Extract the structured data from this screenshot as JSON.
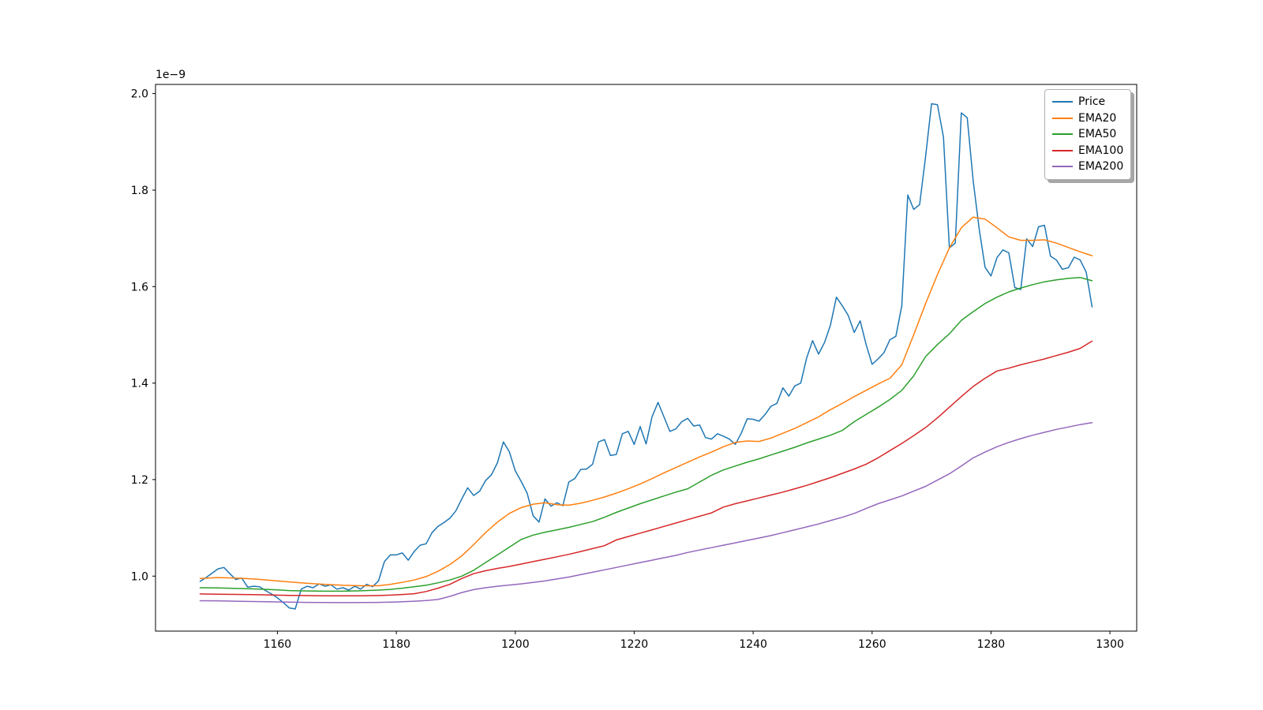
{
  "figure": {
    "background": "#ffffff"
  },
  "chart_data": {
    "type": "line",
    "title": "",
    "xlabel": "",
    "ylabel": "",
    "y_offset_label": "1e−9",
    "xlim": [
      1139.5,
      1304.5
    ],
    "ylim": [
      0.886,
      2.019
    ],
    "x_ticks": [
      1160,
      1180,
      1200,
      1220,
      1240,
      1260,
      1280,
      1300
    ],
    "y_ticks": [
      "1.0",
      "1.2",
      "1.4",
      "1.6",
      "1.8",
      "2.0"
    ],
    "grid": false,
    "legend": {
      "position": "upper right",
      "shadow": true
    },
    "series": [
      {
        "name": "price",
        "label": "Price",
        "color": "#1f77b4",
        "x": [
          1147,
          1148,
          1149,
          1150,
          1151,
          1152,
          1153,
          1154,
          1155,
          1156,
          1157,
          1158,
          1159,
          1160,
          1161,
          1162,
          1163,
          1164,
          1165,
          1166,
          1167,
          1168,
          1169,
          1170,
          1171,
          1172,
          1173,
          1174,
          1175,
          1176,
          1177,
          1178,
          1179,
          1180,
          1181,
          1182,
          1183,
          1184,
          1185,
          1186,
          1187,
          1188,
          1189,
          1190,
          1191,
          1192,
          1193,
          1194,
          1195,
          1196,
          1197,
          1198,
          1199,
          1200,
          1201,
          1202,
          1203,
          1204,
          1205,
          1206,
          1207,
          1208,
          1209,
          1210,
          1211,
          1212,
          1213,
          1214,
          1215,
          1216,
          1217,
          1218,
          1219,
          1220,
          1221,
          1222,
          1223,
          1224,
          1225,
          1226,
          1227,
          1228,
          1229,
          1230,
          1231,
          1232,
          1233,
          1234,
          1235,
          1236,
          1237,
          1238,
          1239,
          1240,
          1241,
          1242,
          1243,
          1244,
          1245,
          1246,
          1247,
          1248,
          1249,
          1250,
          1251,
          1252,
          1253,
          1254,
          1255,
          1256,
          1257,
          1258,
          1259,
          1260,
          1261,
          1262,
          1263,
          1264,
          1265,
          1266,
          1267,
          1268,
          1269,
          1270,
          1271,
          1272,
          1273,
          1274,
          1275,
          1276,
          1277,
          1278,
          1279,
          1280,
          1281,
          1282,
          1283,
          1284,
          1285,
          1286,
          1287,
          1288,
          1289,
          1290,
          1291,
          1292,
          1293,
          1294,
          1295,
          1296,
          1297
        ],
        "y": [
          0.989,
          0.997,
          1.006,
          1.015,
          1.018,
          1.005,
          0.993,
          0.996,
          0.977,
          0.979,
          0.978,
          0.97,
          0.963,
          0.955,
          0.945,
          0.934,
          0.932,
          0.973,
          0.979,
          0.976,
          0.984,
          0.979,
          0.982,
          0.973,
          0.976,
          0.971,
          0.979,
          0.973,
          0.983,
          0.978,
          0.99,
          1.03,
          1.044,
          1.044,
          1.048,
          1.033,
          1.051,
          1.064,
          1.067,
          1.09,
          1.103,
          1.111,
          1.12,
          1.135,
          1.16,
          1.183,
          1.167,
          1.176,
          1.198,
          1.21,
          1.235,
          1.278,
          1.258,
          1.218,
          1.196,
          1.172,
          1.125,
          1.112,
          1.16,
          1.145,
          1.152,
          1.146,
          1.195,
          1.202,
          1.221,
          1.222,
          1.232,
          1.278,
          1.283,
          1.25,
          1.252,
          1.295,
          1.3,
          1.273,
          1.31,
          1.274,
          1.33,
          1.36,
          1.33,
          1.3,
          1.305,
          1.32,
          1.327,
          1.311,
          1.313,
          1.287,
          1.284,
          1.295,
          1.29,
          1.284,
          1.273,
          1.296,
          1.326,
          1.325,
          1.321,
          1.335,
          1.352,
          1.358,
          1.39,
          1.373,
          1.394,
          1.4,
          1.452,
          1.488,
          1.46,
          1.484,
          1.52,
          1.578,
          1.56,
          1.54,
          1.505,
          1.529,
          1.48,
          1.439,
          1.45,
          1.463,
          1.49,
          1.497,
          1.56,
          1.79,
          1.76,
          1.77,
          1.87,
          1.979,
          1.977,
          1.91,
          1.68,
          1.69,
          1.96,
          1.95,
          1.82,
          1.72,
          1.64,
          1.622,
          1.66,
          1.676,
          1.67,
          1.598,
          1.594,
          1.699,
          1.683,
          1.724,
          1.727,
          1.663,
          1.655,
          1.636,
          1.639,
          1.661,
          1.655,
          1.63,
          1.558
        ]
      },
      {
        "name": "ema20",
        "label": "EMA20",
        "color": "#ff7f0e",
        "x": [
          1147,
          1150,
          1153,
          1156,
          1159,
          1162,
          1165,
          1168,
          1171,
          1174,
          1177,
          1179,
          1181,
          1183,
          1185,
          1187,
          1189,
          1191,
          1193,
          1195,
          1197,
          1199,
          1201,
          1203,
          1205,
          1207,
          1209,
          1211,
          1213,
          1215,
          1217,
          1219,
          1221,
          1223,
          1225,
          1227,
          1229,
          1231,
          1233,
          1235,
          1237,
          1239,
          1241,
          1243,
          1245,
          1247,
          1249,
          1251,
          1253,
          1255,
          1257,
          1259,
          1261,
          1263,
          1265,
          1267,
          1269,
          1271,
          1273,
          1275,
          1277,
          1279,
          1281,
          1283,
          1285,
          1287,
          1289,
          1291,
          1293,
          1295,
          1297
        ],
        "y": [
          0.995,
          0.997,
          0.996,
          0.994,
          0.991,
          0.988,
          0.985,
          0.983,
          0.981,
          0.98,
          0.98,
          0.983,
          0.987,
          0.992,
          0.999,
          1.01,
          1.024,
          1.042,
          1.065,
          1.09,
          1.112,
          1.13,
          1.142,
          1.149,
          1.152,
          1.148,
          1.147,
          1.151,
          1.157,
          1.164,
          1.172,
          1.181,
          1.191,
          1.202,
          1.214,
          1.225,
          1.236,
          1.247,
          1.257,
          1.268,
          1.277,
          1.28,
          1.279,
          1.286,
          1.296,
          1.306,
          1.318,
          1.33,
          1.345,
          1.358,
          1.372,
          1.385,
          1.398,
          1.41,
          1.438,
          1.5,
          1.565,
          1.625,
          1.68,
          1.722,
          1.744,
          1.74,
          1.722,
          1.703,
          1.696,
          1.696,
          1.697,
          1.69,
          1.681,
          1.672,
          1.664
        ]
      },
      {
        "name": "ema50",
        "label": "EMA50",
        "color": "#2ca02c",
        "x": [
          1147,
          1150,
          1153,
          1156,
          1159,
          1162,
          1165,
          1168,
          1171,
          1174,
          1177,
          1179,
          1181,
          1183,
          1185,
          1187,
          1189,
          1191,
          1193,
          1195,
          1197,
          1199,
          1201,
          1203,
          1205,
          1207,
          1209,
          1211,
          1213,
          1215,
          1217,
          1219,
          1221,
          1223,
          1225,
          1227,
          1229,
          1231,
          1233,
          1235,
          1237,
          1239,
          1241,
          1243,
          1245,
          1247,
          1249,
          1251,
          1253,
          1255,
          1257,
          1259,
          1261,
          1263,
          1265,
          1267,
          1269,
          1271,
          1273,
          1275,
          1277,
          1279,
          1281,
          1283,
          1285,
          1287,
          1289,
          1291,
          1293,
          1295,
          1297
        ],
        "y": [
          0.976,
          0.9755,
          0.9745,
          0.9735,
          0.972,
          0.97,
          0.9692,
          0.9687,
          0.9688,
          0.9695,
          0.971,
          0.9725,
          0.975,
          0.978,
          0.981,
          0.986,
          0.992,
          1.0,
          1.012,
          1.028,
          1.044,
          1.06,
          1.076,
          1.085,
          1.091,
          1.096,
          1.101,
          1.107,
          1.113,
          1.122,
          1.132,
          1.141,
          1.15,
          1.158,
          1.166,
          1.174,
          1.181,
          1.195,
          1.209,
          1.22,
          1.228,
          1.236,
          1.243,
          1.251,
          1.259,
          1.267,
          1.276,
          1.284,
          1.292,
          1.302,
          1.32,
          1.335,
          1.35,
          1.366,
          1.385,
          1.415,
          1.455,
          1.48,
          1.502,
          1.53,
          1.548,
          1.565,
          1.578,
          1.589,
          1.597,
          1.604,
          1.61,
          1.614,
          1.617,
          1.619,
          1.612
        ]
      },
      {
        "name": "ema100",
        "label": "EMA100",
        "color": "#d62728",
        "x": [
          1147,
          1150,
          1153,
          1156,
          1159,
          1162,
          1165,
          1168,
          1171,
          1174,
          1177,
          1179,
          1181,
          1183,
          1185,
          1187,
          1189,
          1191,
          1193,
          1195,
          1197,
          1199,
          1201,
          1203,
          1205,
          1207,
          1209,
          1211,
          1213,
          1215,
          1217,
          1219,
          1221,
          1223,
          1225,
          1227,
          1229,
          1231,
          1233,
          1235,
          1237,
          1239,
          1241,
          1243,
          1245,
          1247,
          1249,
          1251,
          1253,
          1255,
          1257,
          1259,
          1261,
          1263,
          1265,
          1267,
          1269,
          1271,
          1273,
          1275,
          1277,
          1279,
          1281,
          1283,
          1285,
          1287,
          1289,
          1291,
          1293,
          1295,
          1297
        ],
        "y": [
          0.963,
          0.9625,
          0.962,
          0.9615,
          0.9608,
          0.96,
          0.9595,
          0.959,
          0.959,
          0.9592,
          0.9598,
          0.9605,
          0.9618,
          0.9635,
          0.968,
          0.975,
          0.983,
          0.995,
          1.005,
          1.011,
          1.016,
          1.02,
          1.025,
          1.03,
          1.035,
          1.04,
          1.045,
          1.051,
          1.057,
          1.063,
          1.075,
          1.082,
          1.089,
          1.096,
          1.103,
          1.11,
          1.117,
          1.124,
          1.131,
          1.143,
          1.15,
          1.156,
          1.162,
          1.168,
          1.174,
          1.181,
          1.188,
          1.196,
          1.204,
          1.213,
          1.222,
          1.232,
          1.245,
          1.26,
          1.275,
          1.291,
          1.308,
          1.328,
          1.35,
          1.372,
          1.393,
          1.41,
          1.425,
          1.431,
          1.438,
          1.444,
          1.45,
          1.457,
          1.464,
          1.472,
          1.487
        ]
      },
      {
        "name": "ema200",
        "label": "EMA200",
        "color": "#9467bd",
        "x": [
          1147,
          1150,
          1153,
          1156,
          1159,
          1162,
          1165,
          1168,
          1171,
          1174,
          1177,
          1179,
          1181,
          1183,
          1185,
          1187,
          1189,
          1191,
          1193,
          1195,
          1197,
          1199,
          1201,
          1203,
          1205,
          1207,
          1209,
          1211,
          1213,
          1215,
          1217,
          1219,
          1221,
          1223,
          1225,
          1227,
          1229,
          1231,
          1233,
          1235,
          1237,
          1239,
          1241,
          1243,
          1245,
          1247,
          1249,
          1251,
          1253,
          1255,
          1257,
          1259,
          1261,
          1263,
          1265,
          1267,
          1269,
          1271,
          1273,
          1275,
          1277,
          1279,
          1281,
          1283,
          1285,
          1287,
          1289,
          1291,
          1293,
          1295,
          1297
        ],
        "y": [
          0.949,
          0.9487,
          0.948,
          0.9473,
          0.9467,
          0.946,
          0.9455,
          0.9452,
          0.945,
          0.9452,
          0.9455,
          0.946,
          0.9468,
          0.948,
          0.9495,
          0.9515,
          0.958,
          0.966,
          0.972,
          0.976,
          0.979,
          0.9815,
          0.984,
          0.987,
          0.99,
          0.994,
          0.998,
          1.003,
          1.008,
          1.013,
          1.018,
          1.023,
          1.028,
          1.033,
          1.038,
          1.043,
          1.049,
          1.054,
          1.059,
          1.064,
          1.069,
          1.074,
          1.079,
          1.084,
          1.09,
          1.096,
          1.102,
          1.108,
          1.115,
          1.122,
          1.13,
          1.14,
          1.15,
          1.158,
          1.166,
          1.176,
          1.186,
          1.199,
          1.212,
          1.228,
          1.245,
          1.257,
          1.268,
          1.277,
          1.285,
          1.292,
          1.298,
          1.304,
          1.309,
          1.314,
          1.318
        ]
      }
    ]
  }
}
